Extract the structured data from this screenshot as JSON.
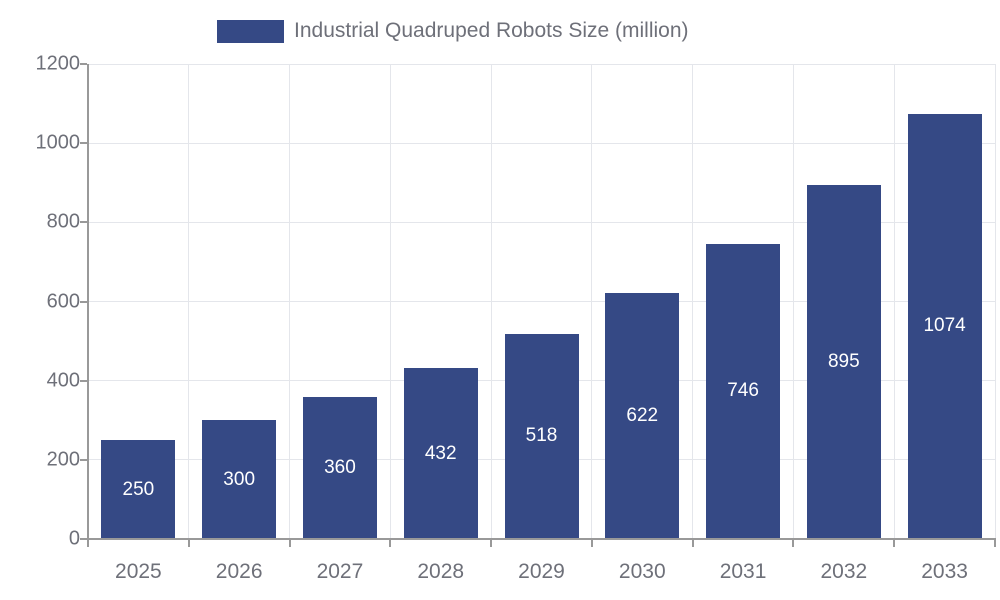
{
  "legend": {
    "label": "Industrial Quadruped Robots Size (million)"
  },
  "chart_data": {
    "type": "bar",
    "title": "Industrial Quadruped Robots Size (million)",
    "categories": [
      "2025",
      "2026",
      "2027",
      "2028",
      "2029",
      "2030",
      "2031",
      "2032",
      "2033"
    ],
    "values": [
      250,
      300,
      360,
      432,
      518,
      622,
      746,
      895,
      1074
    ],
    "series_name": "Industrial Quadruped Robots Size (million)",
    "xlabel": "",
    "ylabel": "",
    "ylim": [
      0,
      1200
    ],
    "yticks": [
      0,
      200,
      400,
      600,
      800,
      1000,
      1200
    ],
    "grid": true,
    "legend_position": "top",
    "value_labels": "inside-center",
    "colors": {
      "bar": "#354985",
      "value_label": "#ffffff",
      "axis_text": "#6E7079",
      "axis_line": "#999999",
      "gridline": "#E4E6EB",
      "background": "#ffffff"
    }
  }
}
